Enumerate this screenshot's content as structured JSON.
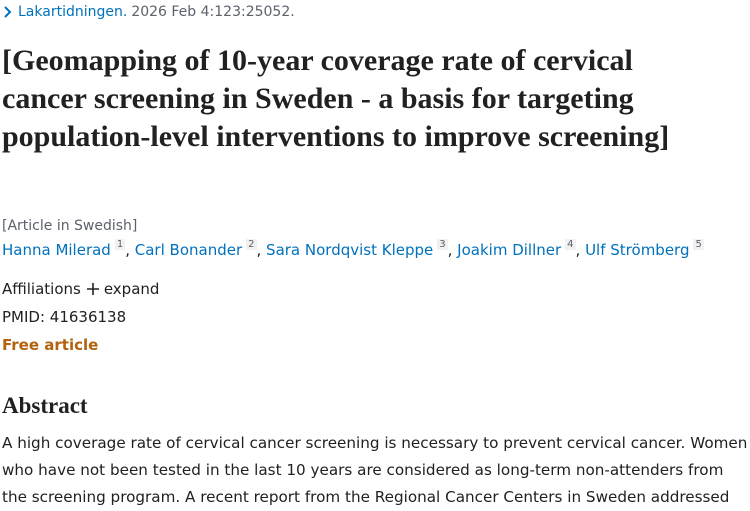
{
  "journal": {
    "name": "Lakartidningen.",
    "citation": "2026 Feb 4:123:25052."
  },
  "title": "[Geomapping of 10-year coverage rate of cervical cancer screening in Sweden - a basis for targeting population-level interventions to improve screening]",
  "language_note": "[Article in Swedish]",
  "author_separator": ", ",
  "authors": [
    {
      "name": "Hanna Milerad",
      "affiliation": 1
    },
    {
      "name": "Carl Bonander",
      "affiliation": 2
    },
    {
      "name": "Sara Nordqvist Kleppe",
      "affiliation": 3
    },
    {
      "name": "Joakim Dillner",
      "affiliation": 4
    },
    {
      "name": "Ulf Strömberg",
      "affiliation": 5
    }
  ],
  "affiliations": {
    "label": "Affiliations",
    "toggle": "expand"
  },
  "pmid": "PMID: 41636138",
  "free_article": "Free article",
  "abstract": {
    "heading": "Abstract",
    "text": "A high coverage rate of cervical cancer screening is necessary to prevent cervical cancer. Women who have not been tested in the last 10 years are considered as long-term non-attenders from the screening program. A recent report from the Regional Cancer Centers in Sweden addressed"
  }
}
